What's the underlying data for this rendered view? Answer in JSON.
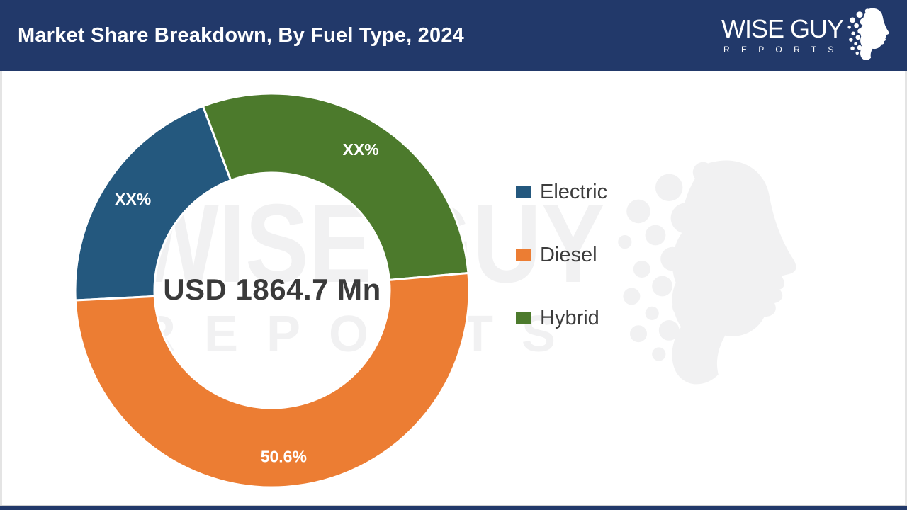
{
  "header": {
    "title": "Market Share Breakdown, By Fuel Type, 2024",
    "logo": {
      "line1": "WISE GUY",
      "line2": "R E P O R T S"
    }
  },
  "watermark": {
    "line1": "WISE GUY",
    "line2": "REPORTS"
  },
  "colors": {
    "header_bg": "#22396A",
    "footer_bg": "#22396A",
    "edge_border": "#E4E4E4",
    "center_text": "#3A3A3A",
    "legend_text": "#3C3C3C",
    "watermark": "#F1F1F2",
    "slice_label_text": "#FFFFFF"
  },
  "chart_data": {
    "type": "pie",
    "subtype": "donut",
    "title": "Market Share Breakdown, By Fuel Type, 2024",
    "center_label": "USD 1864.7 Mn",
    "legend_position": "right",
    "start_angle_deg": 267.1,
    "draw_order": [
      0,
      2,
      1
    ],
    "outer_radius": 278,
    "inner_radius": 166,
    "label_radius_ratio": 0.845,
    "slices": [
      {
        "label": "Electric",
        "display": "XX%",
        "value": 20.1,
        "color": "#24587E"
      },
      {
        "label": "Diesel",
        "display": "50.6%",
        "value": 50.6,
        "color": "#EC7D33"
      },
      {
        "label": "Hybrid",
        "display": "XX%",
        "value": 29.3,
        "color": "#4C7A2C"
      }
    ]
  }
}
